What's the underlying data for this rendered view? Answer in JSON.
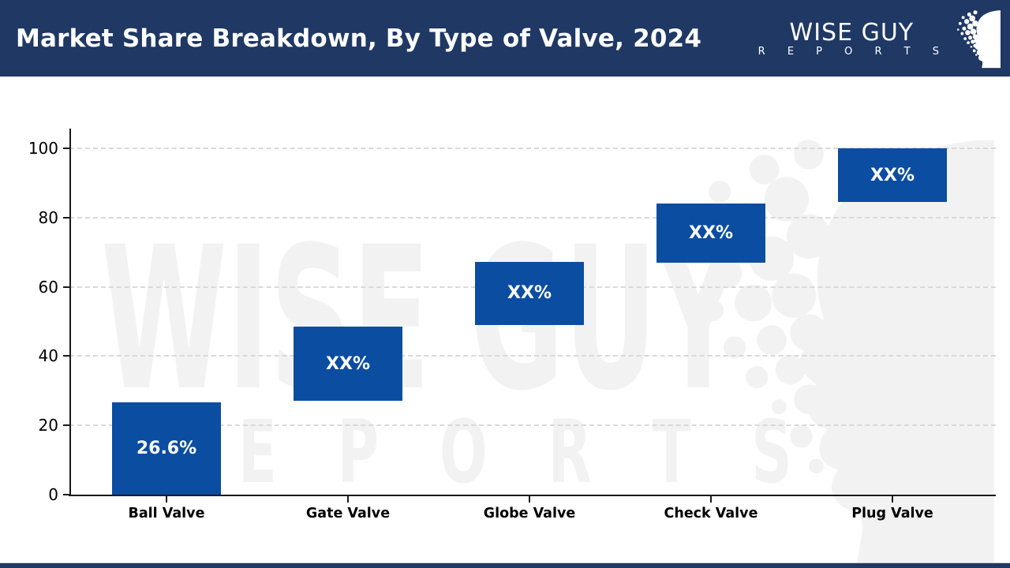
{
  "header": {
    "title": "Market Share Breakdown, By Type of Valve, 2024"
  },
  "logo": {
    "name_top": "WISE GUY",
    "name_bottom": "R E P O R T S"
  },
  "watermark": {
    "line1": "WISE GUY",
    "line2": "R E P O R T S"
  },
  "chart_data": {
    "type": "bar",
    "subtype": "waterfall",
    "title": "Market Share Breakdown, By Type of Valve, 2024",
    "categories": [
      "Ball Valve",
      "Gate Valve",
      "Globe Valve",
      "Check Valve",
      "Plug Valve"
    ],
    "segments": [
      {
        "category": "Ball Valve",
        "start": 0,
        "end": 26.6,
        "label": "26.6%"
      },
      {
        "category": "Gate Valve",
        "start": 27.0,
        "end": 48.6,
        "label": "XX%"
      },
      {
        "category": "Globe Valve",
        "start": 48.9,
        "end": 67.3,
        "label": "XX%"
      },
      {
        "category": "Check Valve",
        "start": 66.9,
        "end": 84.1,
        "label": "XX%"
      },
      {
        "category": "Plug Valve",
        "start": 84.5,
        "end": 100.0,
        "label": "XX%"
      }
    ],
    "xlabel": "",
    "ylabel": "",
    "ylim": [
      0,
      100
    ],
    "yticks": [
      0,
      20,
      40,
      60,
      80,
      100
    ],
    "grid": "horizontal-dashed",
    "legend": "none"
  },
  "colors": {
    "header_bg": "#1f3864",
    "footer_bg": "#1f3864",
    "bar": "#0b4da1",
    "bar_label": "#ffffff",
    "grid": "#d9d9d9",
    "axis": "#1a1a1a",
    "watermark": "#f2f2f2",
    "title_text": "#ffffff"
  }
}
